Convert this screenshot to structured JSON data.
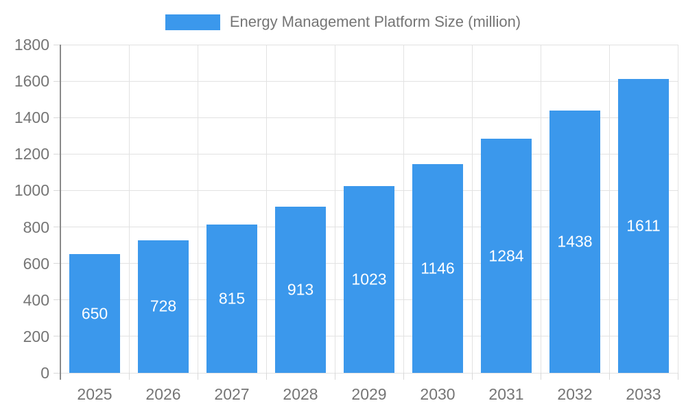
{
  "chart_data": {
    "type": "bar",
    "title": "Energy Management Platform Size (million)",
    "legend": [
      "Energy Management Platform Size (million)"
    ],
    "legend_position": "top-center",
    "categories": [
      "2025",
      "2026",
      "2027",
      "2028",
      "2029",
      "2030",
      "2031",
      "2032",
      "2033"
    ],
    "values": [
      650,
      728,
      815,
      913,
      1023,
      1146,
      1284,
      1438,
      1611
    ],
    "data_labels_visible": true,
    "xlabel": "",
    "ylabel": "",
    "ylim": [
      0,
      1800
    ],
    "y_ticks": [
      0,
      200,
      400,
      600,
      800,
      1000,
      1200,
      1400,
      1600,
      1800
    ],
    "grid": {
      "horizontal": true,
      "vertical": true
    },
    "colors": {
      "bar": "#3B98EC",
      "value_label": "#FFFFFF",
      "axis_text": "#757575",
      "gridline": "#E2E2E2",
      "tick": "#D8D8D8",
      "axis_line": "#8A8A8A",
      "background": "#FFFFFF"
    }
  }
}
